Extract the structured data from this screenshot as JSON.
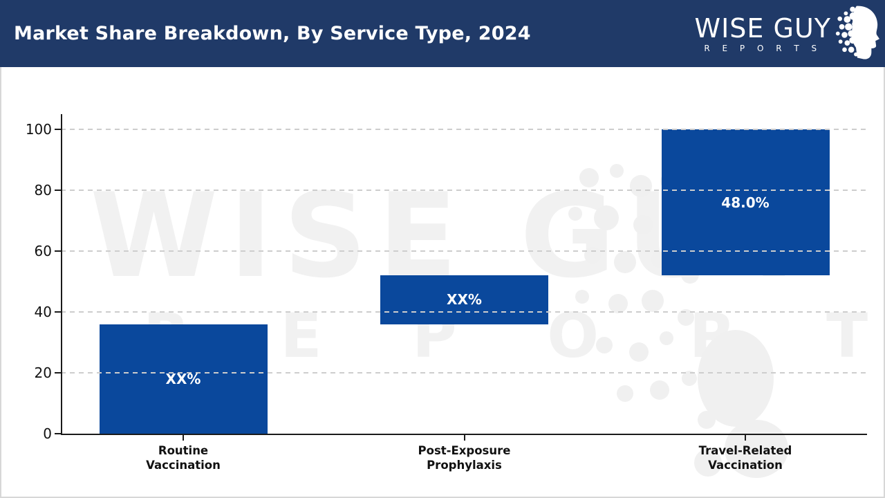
{
  "header": {
    "title": "Market Share Breakdown, By Service Type, 2024",
    "logo": {
      "wordmark": "WISE GUY",
      "subtext": "R E P O R T S"
    }
  },
  "watermark": {
    "wordmark": "WISE GUY",
    "subtext": "R E P O R T S"
  },
  "chart_data": {
    "type": "bar",
    "subtype": "stacked-breakdown (waterfall-style floating segments)",
    "title": "Market Share Breakdown, By Service Type, 2024",
    "categories": [
      [
        "Routine",
        "Vaccination"
      ],
      [
        "Post-Exposure",
        "Prophylaxis"
      ],
      [
        "Travel-Related",
        "Vaccination"
      ]
    ],
    "segments": [
      {
        "category": "Routine Vaccination",
        "start": 0,
        "end": 36,
        "value_label": "XX%"
      },
      {
        "category": "Post-Exposure Prophylaxis",
        "start": 36,
        "end": 52,
        "value_label": "XX%"
      },
      {
        "category": "Travel-Related Vaccination",
        "start": 52,
        "end": 100,
        "value_label": "48.0%"
      }
    ],
    "yticks": [
      0,
      20,
      40,
      60,
      80,
      100
    ],
    "ylim": [
      0,
      105
    ],
    "xlabel": "",
    "ylabel": "",
    "grid": {
      "horizontal": true,
      "style": "dashed",
      "drawn_over_bars": true
    },
    "legend": "none",
    "colors": {
      "bar": "#0a489c",
      "header": "#203a68",
      "grid": "#cdcdcd",
      "bar_label_text": "#ffffff",
      "axis": "#1a1a1a",
      "watermark": "#f1f1f1"
    }
  }
}
